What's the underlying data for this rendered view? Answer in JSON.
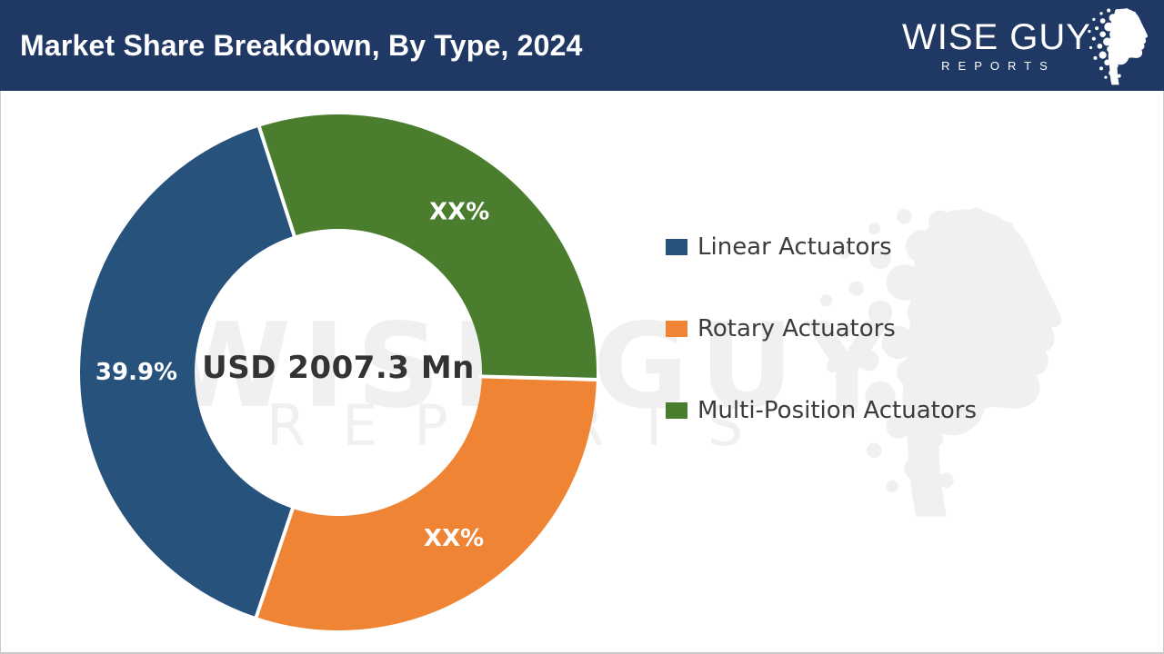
{
  "header": {
    "title": "Market Share Breakdown, By Type, 2024",
    "logo": {
      "line1": "WISE GUY",
      "line2": "REPORTS"
    }
  },
  "watermark": {
    "line1": "WISE GUY",
    "line2": "REPORTS"
  },
  "chart_data": {
    "type": "pie",
    "subtype": "donut",
    "title": "Market Share Breakdown, By Type, 2024",
    "center_label": "USD 2007.3 Mn",
    "start_angle_deg": -1.6,
    "direction": "counterclockwise",
    "hole_radius_ratio": 0.56,
    "segments": [
      {
        "name": "Multi-Position Actuators",
        "value_pct": 30.4,
        "display_label": "XX%",
        "color": "#4A7D2D"
      },
      {
        "name": "Linear Actuators",
        "value_pct": 39.9,
        "display_label": "39.9%",
        "color": "#26527C"
      },
      {
        "name": "Rotary Actuators",
        "value_pct": 29.7,
        "display_label": "XX%",
        "color": "#EE8434"
      }
    ],
    "legend": [
      {
        "label": "Linear Actuators",
        "color": "#26527C"
      },
      {
        "label": "Rotary Actuators",
        "color": "#EE8434"
      },
      {
        "label": "Multi-Position Actuators",
        "color": "#4A7D2D"
      }
    ],
    "label_color": "#ffffff",
    "gap_color": "#ffffff"
  }
}
